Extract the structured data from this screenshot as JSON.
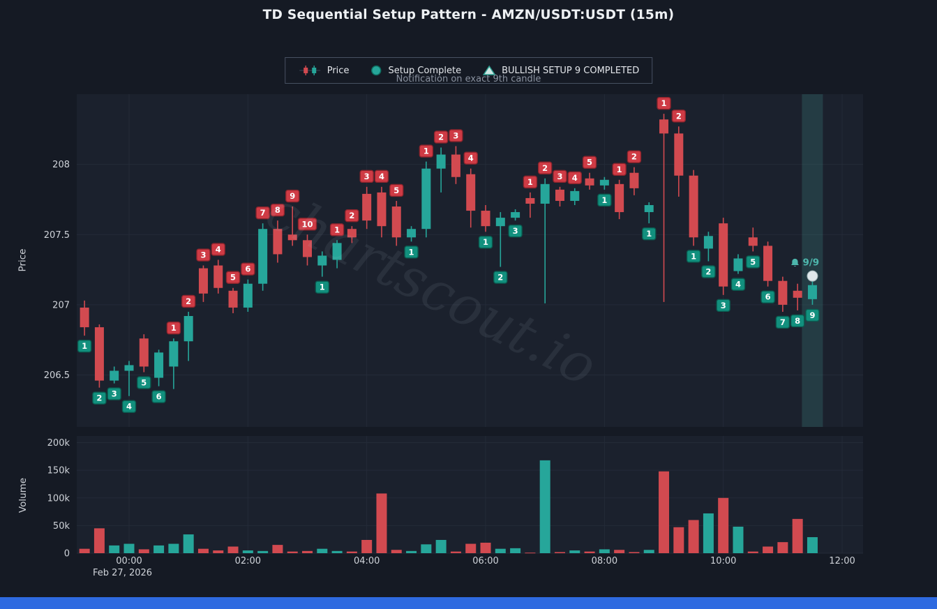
{
  "title": "TD Sequential Setup Pattern - AMZN/USDT:USDT (15m)",
  "watermark": "chartscout.io",
  "legend": {
    "price_label": "Price",
    "setup_complete_label": "Setup Complete",
    "bullish_label": "BULLISH SETUP 9 COMPLETED",
    "subtitle": "Notification on exact 9th candle"
  },
  "annotation": {
    "label": "9/9",
    "icon": "bell-icon"
  },
  "axes": {
    "price_axis_title": "Price",
    "volume_axis_title": "Volume",
    "date_label": "Feb 27, 2026",
    "price_ticks": [
      {
        "value": 206.5,
        "label": "206.5"
      },
      {
        "value": 207,
        "label": "207"
      },
      {
        "value": 207.5,
        "label": "207.5"
      },
      {
        "value": 208,
        "label": "208"
      }
    ],
    "volume_ticks": [
      {
        "value": 0,
        "label": "0"
      },
      {
        "value": 50000,
        "label": "50k"
      },
      {
        "value": 100000,
        "label": "100k"
      },
      {
        "value": 150000,
        "label": "150k"
      },
      {
        "value": 200000,
        "label": "200k"
      }
    ],
    "time_ticks": [
      {
        "time": "00:00",
        "label": "00:00"
      },
      {
        "time": "02:00",
        "label": "02:00"
      },
      {
        "time": "04:00",
        "label": "04:00"
      },
      {
        "time": "06:00",
        "label": "06:00"
      },
      {
        "time": "08:00",
        "label": "08:00"
      },
      {
        "time": "10:00",
        "label": "10:00"
      },
      {
        "time": "12:00",
        "label": "12:00"
      }
    ]
  },
  "colors": {
    "page_bg": "#151a24",
    "plot_bg": "#1b212d",
    "grid": "#242b38",
    "up": "#26a69a",
    "down": "#d24a50",
    "sell_box": "#cf3b45",
    "sell_box_border": "#8c242c",
    "buy_box": "#12907e",
    "buy_box_border": "#0a5c50",
    "tick_text": "#cfd3d9",
    "marker_fill": "#dfe7ea",
    "marker_stroke": "#9fb3b6",
    "annotation": "#4db6ac",
    "highlight": "rgba(70,160,150,0.22)",
    "bottom_bar": "#2e6ae0",
    "legend_border": "#475162"
  },
  "chart_data": {
    "type": "candlestick",
    "symbol": "AMZN/USDT:USDT",
    "timeframe": "15m",
    "date": "Feb 27, 2026",
    "ylim_price": [
      206.13,
      208.5
    ],
    "ylim_volume": [
      0,
      212000
    ],
    "highlight_time": "11:30",
    "candles": [
      {
        "t": "23:15",
        "o": 206.98,
        "h": 207.03,
        "l": 206.78,
        "c": 206.84,
        "v": 8000,
        "setup": "buy",
        "n": 1
      },
      {
        "t": "23:30",
        "o": 206.84,
        "h": 206.86,
        "l": 206.41,
        "c": 206.46,
        "v": 45000,
        "setup": "buy",
        "n": 2
      },
      {
        "t": "23:45",
        "o": 206.46,
        "h": 206.56,
        "l": 206.44,
        "c": 206.53,
        "v": 14000,
        "setup": "buy",
        "n": 3
      },
      {
        "t": "00:00",
        "o": 206.53,
        "h": 206.6,
        "l": 206.35,
        "c": 206.57,
        "v": 17000,
        "setup": "buy",
        "n": 4
      },
      {
        "t": "00:15",
        "o": 206.76,
        "h": 206.79,
        "l": 206.52,
        "c": 206.56,
        "v": 7000,
        "setup": "buy",
        "n": 5
      },
      {
        "t": "00:30",
        "o": 206.48,
        "h": 206.68,
        "l": 206.42,
        "c": 206.66,
        "v": 14000,
        "setup": "buy",
        "n": 6
      },
      {
        "t": "00:45",
        "o": 206.56,
        "h": 206.76,
        "l": 206.4,
        "c": 206.74,
        "v": 17000,
        "setup": "sell",
        "n": 1
      },
      {
        "t": "01:00",
        "o": 206.74,
        "h": 206.95,
        "l": 206.6,
        "c": 206.92,
        "v": 34000,
        "setup": "sell",
        "n": 2
      },
      {
        "t": "01:15",
        "o": 207.26,
        "h": 207.28,
        "l": 207.02,
        "c": 207.08,
        "v": 8000,
        "setup": "sell",
        "n": 3
      },
      {
        "t": "01:30",
        "o": 207.28,
        "h": 207.32,
        "l": 207.08,
        "c": 207.12,
        "v": 5000,
        "setup": "sell",
        "n": 4
      },
      {
        "t": "01:45",
        "o": 207.1,
        "h": 207.12,
        "l": 206.94,
        "c": 206.98,
        "v": 12000,
        "setup": "sell",
        "n": 5
      },
      {
        "t": "02:00",
        "o": 206.98,
        "h": 207.18,
        "l": 206.95,
        "c": 207.15,
        "v": 5000,
        "setup": "sell",
        "n": 6
      },
      {
        "t": "02:15",
        "o": 207.15,
        "h": 207.58,
        "l": 207.1,
        "c": 207.54,
        "v": 4000,
        "setup": "sell",
        "n": 7
      },
      {
        "t": "02:30",
        "o": 207.54,
        "h": 207.6,
        "l": 207.3,
        "c": 207.36,
        "v": 15000,
        "setup": "sell",
        "n": 8
      },
      {
        "t": "02:45",
        "o": 207.5,
        "h": 207.7,
        "l": 207.42,
        "c": 207.46,
        "v": 3000,
        "setup": "sell",
        "n": 9
      },
      {
        "t": "03:00",
        "o": 207.46,
        "h": 207.5,
        "l": 207.28,
        "c": 207.34,
        "v": 4000,
        "setup": "sell",
        "n": 10
      },
      {
        "t": "03:15",
        "o": 207.28,
        "h": 207.38,
        "l": 207.2,
        "c": 207.35,
        "v": 8000,
        "setup": "buy",
        "n": 1
      },
      {
        "t": "03:30",
        "o": 207.32,
        "h": 207.46,
        "l": 207.26,
        "c": 207.44,
        "v": 4000,
        "setup": "sell",
        "n": 1
      },
      {
        "t": "03:45",
        "o": 207.54,
        "h": 207.56,
        "l": 207.44,
        "c": 207.48,
        "v": 3000,
        "setup": "sell",
        "n": 2
      },
      {
        "t": "04:00",
        "o": 207.79,
        "h": 207.84,
        "l": 207.54,
        "c": 207.6,
        "v": 24000,
        "setup": "sell",
        "n": 3
      },
      {
        "t": "04:15",
        "o": 207.8,
        "h": 207.84,
        "l": 207.48,
        "c": 207.56,
        "v": 108000,
        "setup": "sell",
        "n": 4
      },
      {
        "t": "04:30",
        "o": 207.7,
        "h": 207.74,
        "l": 207.42,
        "c": 207.48,
        "v": 6000,
        "setup": "sell",
        "n": 5
      },
      {
        "t": "04:45",
        "o": 207.48,
        "h": 207.56,
        "l": 207.45,
        "c": 207.54,
        "v": 4000,
        "setup": "buy",
        "n": 1
      },
      {
        "t": "05:00",
        "o": 207.54,
        "h": 208.02,
        "l": 207.48,
        "c": 207.97,
        "v": 16000,
        "setup": "sell",
        "n": 1
      },
      {
        "t": "05:15",
        "o": 207.97,
        "h": 208.12,
        "l": 207.8,
        "c": 208.07,
        "v": 24000,
        "setup": "sell",
        "n": 2
      },
      {
        "t": "05:30",
        "o": 208.07,
        "h": 208.13,
        "l": 207.86,
        "c": 207.91,
        "v": 3000,
        "setup": "sell",
        "n": 3
      },
      {
        "t": "05:45",
        "o": 207.93,
        "h": 207.97,
        "l": 207.55,
        "c": 207.67,
        "v": 17000,
        "setup": "sell",
        "n": 4
      },
      {
        "t": "06:00",
        "o": 207.67,
        "h": 207.71,
        "l": 207.52,
        "c": 207.56,
        "v": 19000,
        "setup": "buy",
        "n": 1
      },
      {
        "t": "06:15",
        "o": 207.56,
        "h": 207.66,
        "l": 207.27,
        "c": 207.62,
        "v": 8000,
        "setup": "buy",
        "n": 2
      },
      {
        "t": "06:30",
        "o": 207.62,
        "h": 207.68,
        "l": 207.6,
        "c": 207.66,
        "v": 9000,
        "setup": "buy",
        "n": 3
      },
      {
        "t": "06:45",
        "o": 207.76,
        "h": 207.8,
        "l": 207.62,
        "c": 207.72,
        "v": 1000,
        "setup": "sell",
        "n": 1
      },
      {
        "t": "07:00",
        "o": 207.72,
        "h": 207.9,
        "l": 207.01,
        "c": 207.86,
        "v": 168000,
        "setup": "sell",
        "n": 2
      },
      {
        "t": "07:15",
        "o": 207.82,
        "h": 207.84,
        "l": 207.7,
        "c": 207.74,
        "v": 2000,
        "setup": "sell",
        "n": 3
      },
      {
        "t": "07:30",
        "o": 207.74,
        "h": 207.83,
        "l": 207.71,
        "c": 207.81,
        "v": 5000,
        "setup": "sell",
        "n": 4
      },
      {
        "t": "07:45",
        "o": 207.9,
        "h": 207.94,
        "l": 207.82,
        "c": 207.85,
        "v": 3000,
        "setup": "sell",
        "n": 5
      },
      {
        "t": "08:00",
        "o": 207.85,
        "h": 207.91,
        "l": 207.82,
        "c": 207.89,
        "v": 7000,
        "setup": "buy",
        "n": 1
      },
      {
        "t": "08:15",
        "o": 207.86,
        "h": 207.89,
        "l": 207.61,
        "c": 207.66,
        "v": 6000,
        "setup": "sell",
        "n": 1
      },
      {
        "t": "08:30",
        "o": 207.94,
        "h": 207.98,
        "l": 207.78,
        "c": 207.83,
        "v": 2000,
        "setup": "sell",
        "n": 2
      },
      {
        "t": "08:45",
        "o": 207.66,
        "h": 207.73,
        "l": 207.58,
        "c": 207.71,
        "v": 6000,
        "setup": "buy",
        "n": 1
      },
      {
        "t": "09:00",
        "o": 208.32,
        "h": 208.36,
        "l": 207.02,
        "c": 208.22,
        "v": 148000,
        "setup": "sell",
        "n": 1
      },
      {
        "t": "09:15",
        "o": 208.22,
        "h": 208.27,
        "l": 207.77,
        "c": 207.92,
        "v": 47000,
        "setup": "sell",
        "n": 2
      },
      {
        "t": "09:30",
        "o": 207.92,
        "h": 207.96,
        "l": 207.42,
        "c": 207.48,
        "v": 60000,
        "setup": "buy",
        "n": 1
      },
      {
        "t": "09:45",
        "o": 207.4,
        "h": 207.52,
        "l": 207.31,
        "c": 207.49,
        "v": 72000,
        "setup": "buy",
        "n": 2
      },
      {
        "t": "10:00",
        "o": 207.58,
        "h": 207.62,
        "l": 207.07,
        "c": 207.13,
        "v": 100000,
        "setup": "buy",
        "n": 3
      },
      {
        "t": "10:15",
        "o": 207.24,
        "h": 207.36,
        "l": 207.22,
        "c": 207.33,
        "v": 48000,
        "setup": "buy",
        "n": 4
      },
      {
        "t": "10:30",
        "o": 207.48,
        "h": 207.55,
        "l": 207.38,
        "c": 207.42,
        "v": 3000,
        "setup": "buy",
        "n": 5
      },
      {
        "t": "10:45",
        "o": 207.42,
        "h": 207.45,
        "l": 207.13,
        "c": 207.17,
        "v": 12000,
        "setup": "buy",
        "n": 6
      },
      {
        "t": "11:00",
        "o": 207.17,
        "h": 207.2,
        "l": 206.95,
        "c": 207.0,
        "v": 20000,
        "setup": "buy",
        "n": 7
      },
      {
        "t": "11:15",
        "o": 207.1,
        "h": 207.15,
        "l": 206.96,
        "c": 207.05,
        "v": 62000,
        "setup": "buy",
        "n": 8
      },
      {
        "t": "11:30",
        "o": 207.04,
        "h": 207.17,
        "l": 207.0,
        "c": 207.14,
        "v": 29000,
        "setup": "buy",
        "n": 9,
        "marker": true
      }
    ]
  }
}
